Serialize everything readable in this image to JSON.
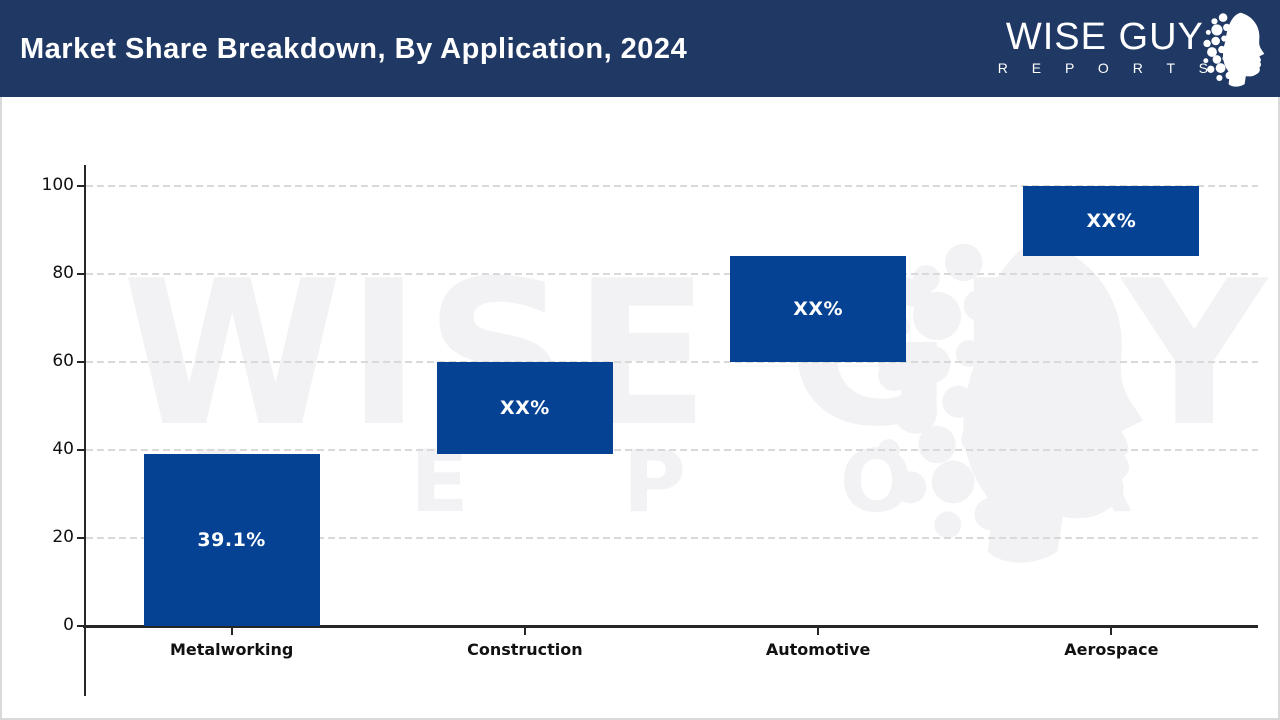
{
  "header": {
    "title": "Market Share Breakdown, By Application, 2024"
  },
  "logo": {
    "wordmark": "WISE GUY",
    "subtext": "R E P O R T S"
  },
  "watermark": {
    "line1": "WISE GUY",
    "line2": "R E P O R T S"
  },
  "chart_data": {
    "type": "bar",
    "subtype": "waterfall",
    "title": "Market Share Breakdown, By Application, 2024",
    "categories": [
      "Metalworking",
      "Construction",
      "Automotive",
      "Aerospace"
    ],
    "segments": [
      {
        "category": "Metalworking",
        "start": 0,
        "end": 39.1,
        "label": "39.1%"
      },
      {
        "category": "Construction",
        "start": 39.1,
        "end": 60,
        "label": "XX%"
      },
      {
        "category": "Automotive",
        "start": 60,
        "end": 84,
        "label": "XX%"
      },
      {
        "category": "Aerospace",
        "start": 84,
        "end": 100,
        "label": "XX%"
      }
    ],
    "xlabel": "",
    "ylabel": "",
    "yticks": [
      0,
      20,
      40,
      60,
      80,
      100
    ],
    "ylim": [
      0,
      105
    ],
    "grid": "dashed-horizontal",
    "legend": "none"
  },
  "colors": {
    "header_background": "#1F3864",
    "bar_blue": "#054294",
    "bar_label": "#ffffff",
    "axis": "#262626",
    "gridline": "#d9d9d9",
    "watermark": "#f2f2f4"
  }
}
